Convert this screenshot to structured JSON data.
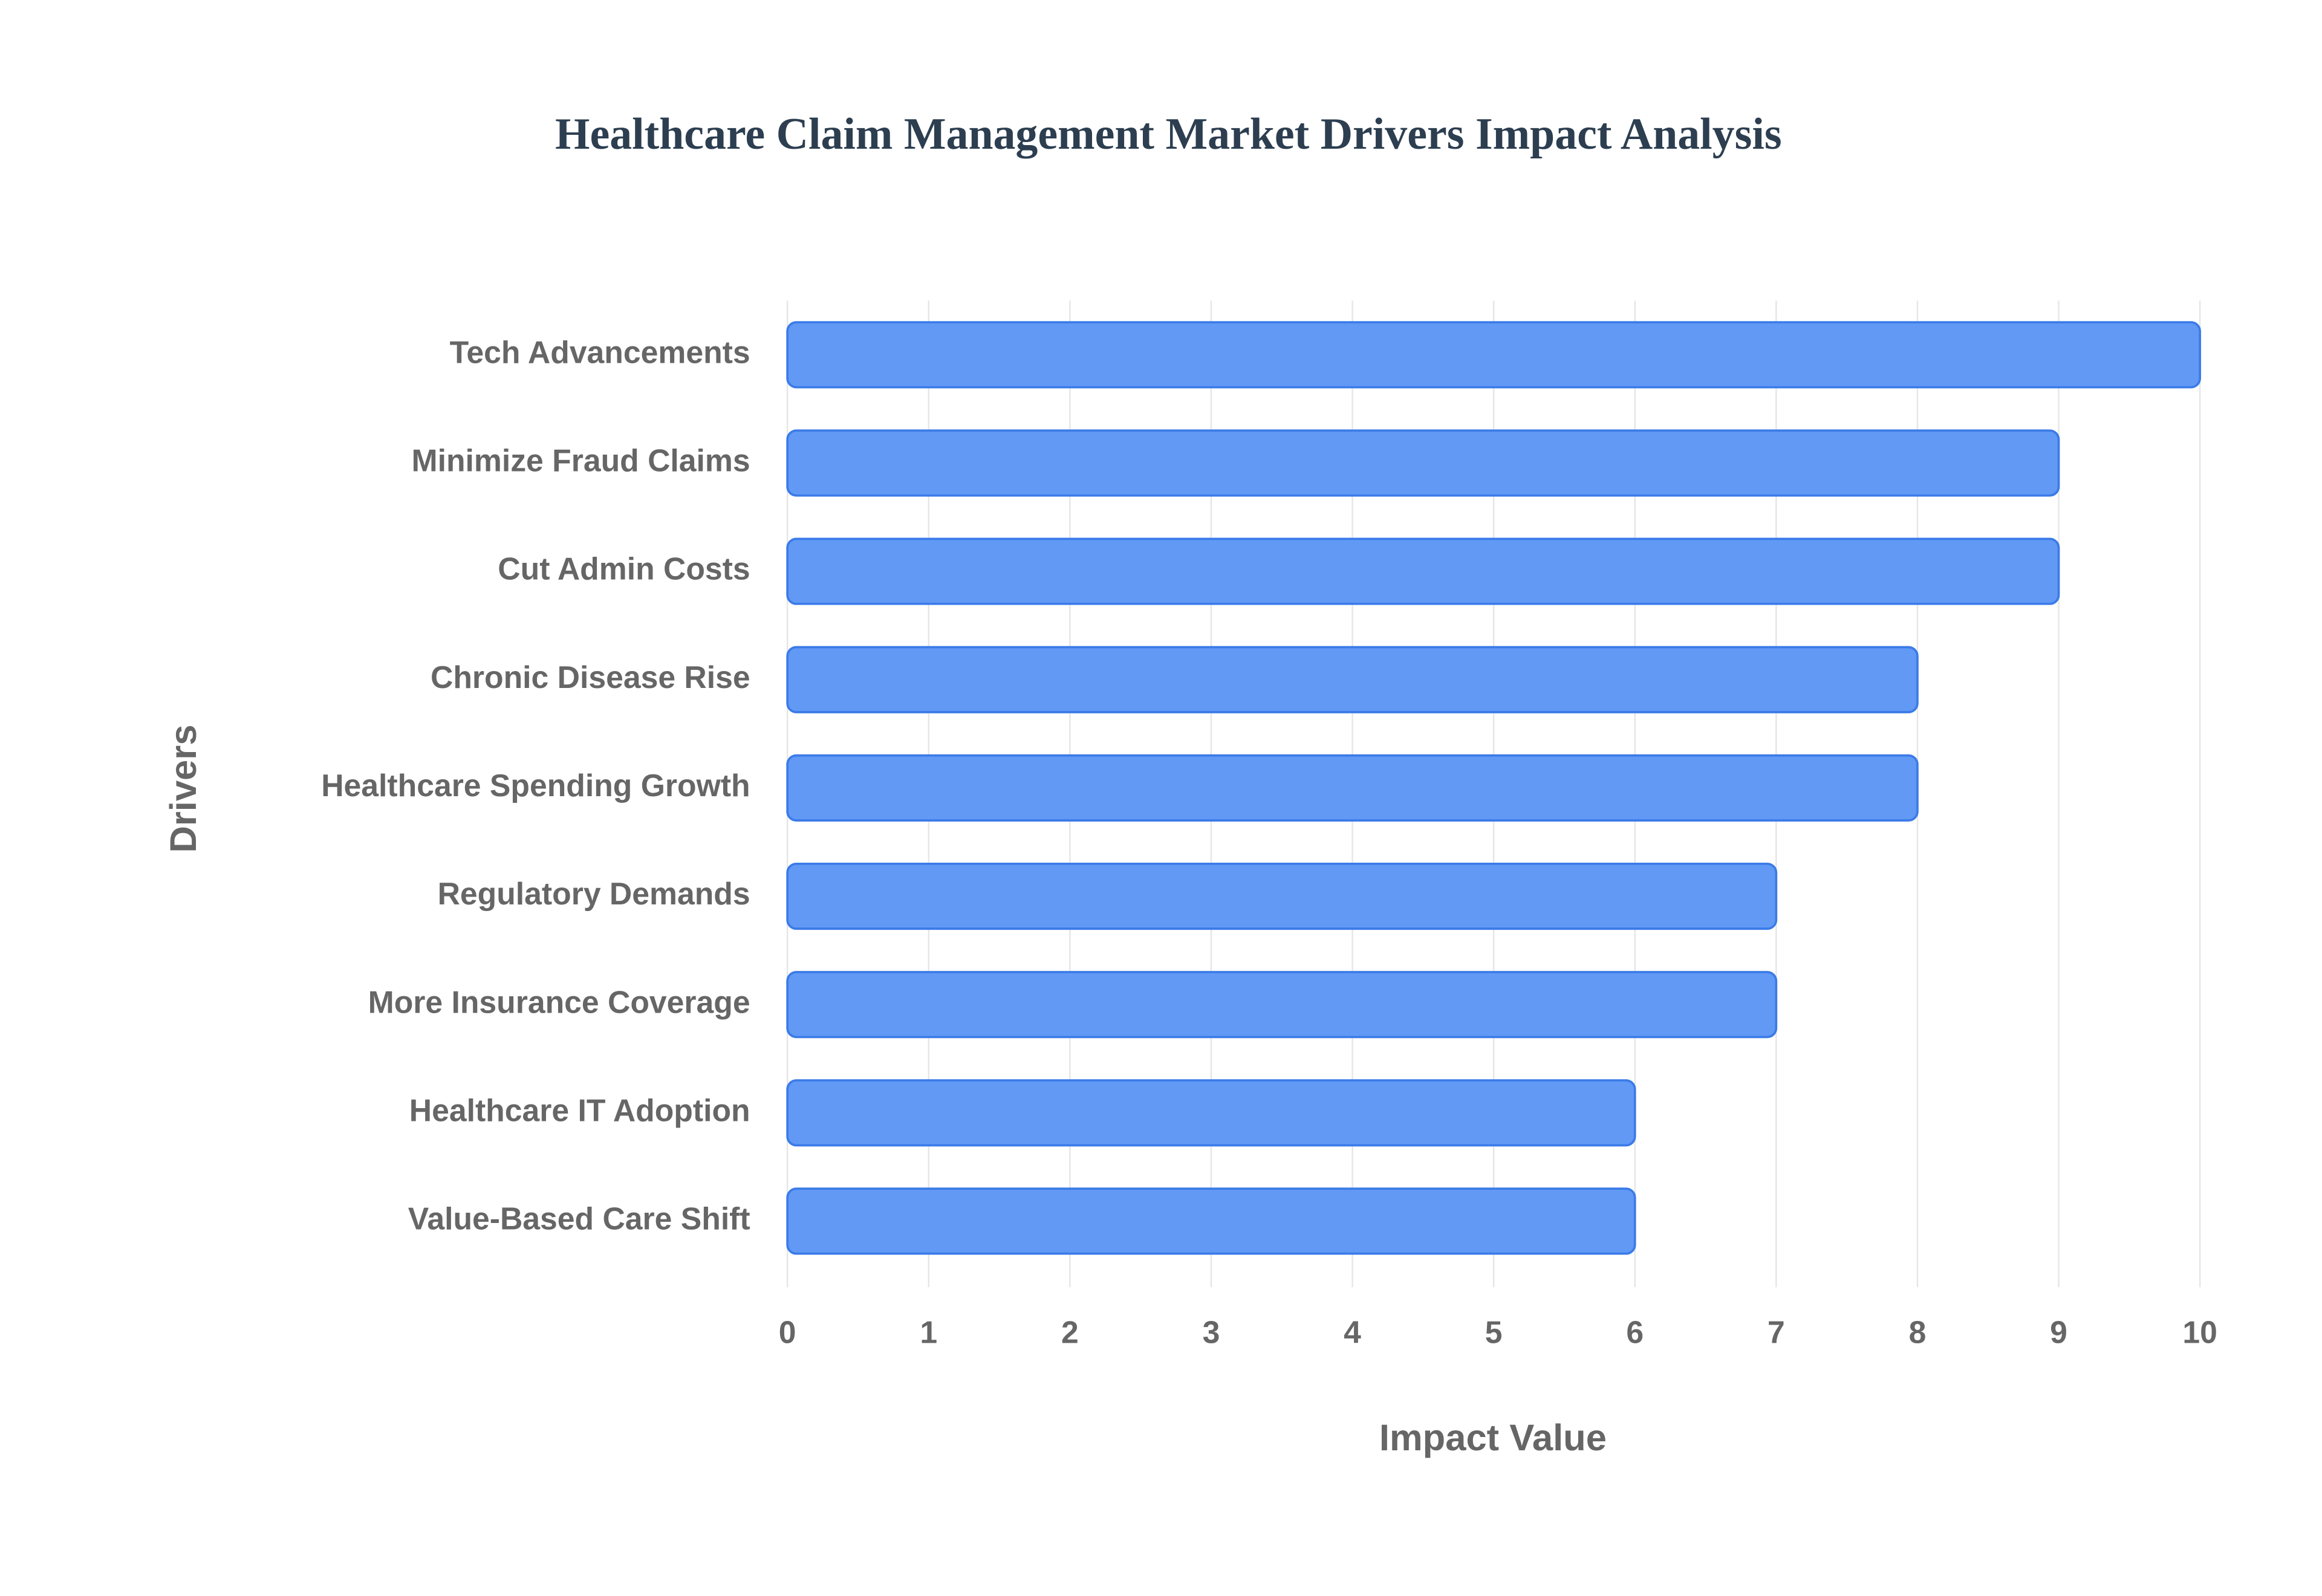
{
  "chart_data": {
    "type": "bar",
    "orientation": "horizontal",
    "title": "Healthcare Claim Management Market Drivers Impact Analysis",
    "x_label": "Impact Value",
    "y_label": "Drivers",
    "categories": [
      "Tech Advancements",
      "Minimize Fraud Claims",
      "Cut Admin Costs",
      "Chronic Disease Rise",
      "Healthcare Spending Growth",
      "Regulatory Demands",
      "More Insurance Coverage",
      "Healthcare IT Adoption",
      "Value-Based Care Shift"
    ],
    "values": [
      10,
      9,
      9,
      8,
      8,
      7,
      7,
      6,
      6
    ],
    "color": "#6199f5",
    "edge_color": "#3b7be8",
    "xlim": [
      0,
      10
    ],
    "xticks": [
      0,
      1,
      2,
      3,
      4,
      5,
      6,
      7,
      8,
      9,
      10
    ],
    "grid": true
  }
}
